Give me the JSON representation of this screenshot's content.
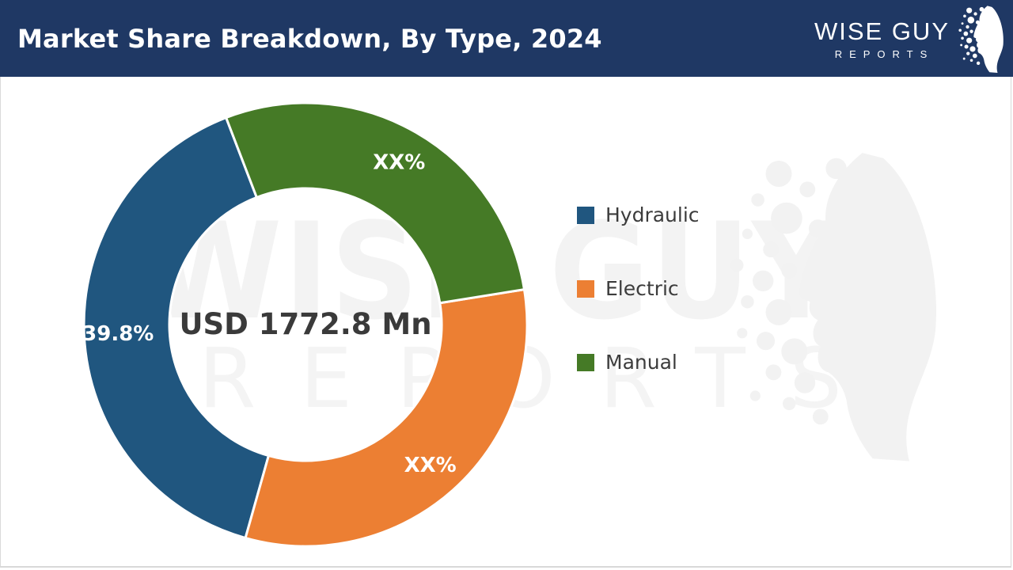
{
  "header": {
    "title": "Market Share Breakdown, By Type, 2024"
  },
  "logo": {
    "line1": "WISE GUY",
    "line2": "REPORTS",
    "face_icon": "dotted-face-profile-icon"
  },
  "watermark": {
    "line1": "WISE GUY",
    "line2": "REPORTS",
    "face_icon": "dotted-face-profile-icon"
  },
  "chart_data": {
    "type": "pie",
    "variant": "donut",
    "title": "Market Share Breakdown, By Type, 2024",
    "center_label": "USD 1772.8 Mn",
    "legend_position": "right",
    "categories": [
      "Hydraulic",
      "Electric",
      "Manual"
    ],
    "series": [
      {
        "name": "Hydraulic",
        "value_pct": 39.8,
        "display_label": "39.8%",
        "color": "#20567f"
      },
      {
        "name": "Electric",
        "value_pct": 31.9,
        "display_label": "XX%",
        "color": "#ec7f33"
      },
      {
        "name": "Manual",
        "value_pct": 28.3,
        "display_label": "XX%",
        "color": "#457a26"
      }
    ]
  },
  "colors": {
    "header_bg": "#1f3864",
    "text_dark": "#3a3a3a",
    "watermark": "#f3f3f3",
    "border": "#d9d9d9"
  }
}
